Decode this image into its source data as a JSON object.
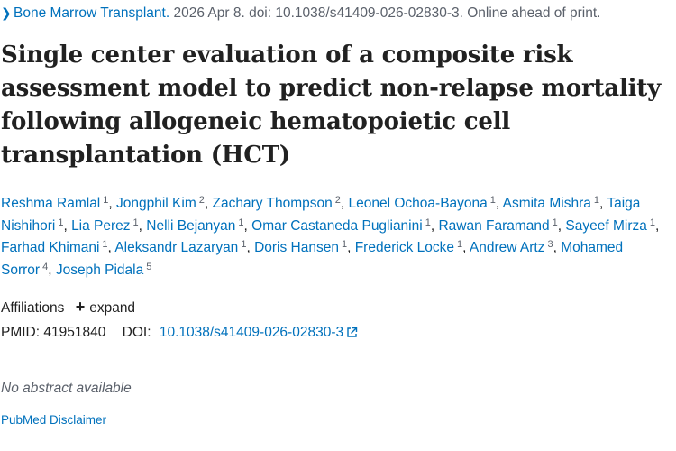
{
  "citation": {
    "arrow": "❯",
    "journal": "Bone Marrow Transplant.",
    "details": " 2026 Apr 8. doi: 10.1038/s41409-026-02830-3. Online ahead of print."
  },
  "article": {
    "title": "Single center evaluation of a composite risk assessment model to predict non-relapse mortality following allogeneic hematopoietic cell transplantation (HCT)"
  },
  "authors": [
    {
      "name": "Reshma Ramlal",
      "aff": "1"
    },
    {
      "name": "Jongphil Kim",
      "aff": "2"
    },
    {
      "name": "Zachary Thompson",
      "aff": "2"
    },
    {
      "name": "Leonel Ochoa-Bayona",
      "aff": "1"
    },
    {
      "name": "Asmita Mishra",
      "aff": "1"
    },
    {
      "name": "Taiga Nishihori",
      "aff": "1"
    },
    {
      "name": "Lia Perez",
      "aff": "1"
    },
    {
      "name": "Nelli Bejanyan",
      "aff": "1"
    },
    {
      "name": "Omar Castaneda Puglianini",
      "aff": "1"
    },
    {
      "name": "Rawan Faramand",
      "aff": "1"
    },
    {
      "name": "Sayeef Mirza",
      "aff": "1"
    },
    {
      "name": "Farhad Khimani",
      "aff": "1"
    },
    {
      "name": "Aleksandr Lazaryan",
      "aff": "1"
    },
    {
      "name": "Doris Hansen",
      "aff": "1"
    },
    {
      "name": "Frederick Locke",
      "aff": "1"
    },
    {
      "name": "Andrew Artz",
      "aff": "3"
    },
    {
      "name": "Mohamed Sorror",
      "aff": "4"
    },
    {
      "name": "Joseph Pidala",
      "aff": "5"
    }
  ],
  "affiliations": {
    "label": "Affiliations",
    "plus": "+",
    "expand_label": "expand"
  },
  "ids": {
    "pmid_label": "PMID:",
    "pmid": "41951840",
    "doi_label": "DOI:",
    "doi": "10.1038/s41409-026-02830-3"
  },
  "abstract": {
    "none_text": "No abstract available"
  },
  "footer": {
    "disclaimer": "PubMed Disclaimer"
  },
  "colors": {
    "link": "#0071bc",
    "text": "#212121",
    "muted": "#5b616b"
  },
  "icons": {
    "external": "external-link-icon",
    "arrow": "chevron-right-icon"
  }
}
